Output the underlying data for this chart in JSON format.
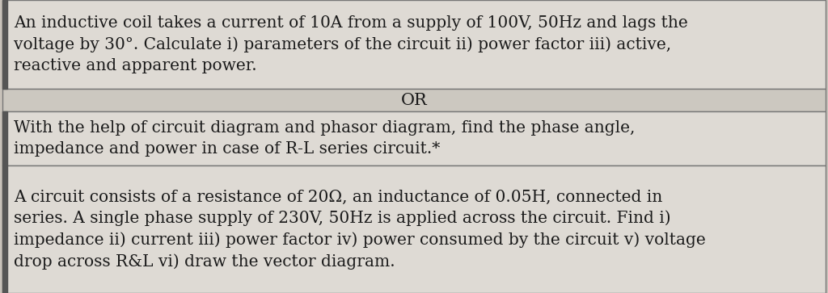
{
  "bg_color": "#c8c2ba",
  "cell_bg": "#dedad4",
  "or_bg": "#ccc8c0",
  "text_color": "#1a1a1a",
  "border_color": "#777777",
  "left_bar_color": "#555555",
  "block1_text": "An inductive coil takes a current of 10A from a supply of 100V, 50Hz and lags the\nvoltage by 30°. Calculate i) parameters of the circuit ii) power factor iii) active,\nreactive and apparent power.",
  "or_text": "OR",
  "block2_text": "With the help of circuit diagram and phasor diagram, find the phase angle,\nimpedance and power in case of R-L series circuit.*",
  "block3_text": "A circuit consists of a resistance of 20Ω, an inductance of 0.05H, connected in\nseries. A single phase supply of 230V, 50Hz is applied across the circuit. Find i)\nimpedance ii) current iii) power factor iv) power consumed by the circuit v) voltage\ndrop across R&L vi) draw the vector diagram.",
  "font_size_main": 14.5,
  "font_size_or": 15,
  "font_family": "DejaVu Serif"
}
